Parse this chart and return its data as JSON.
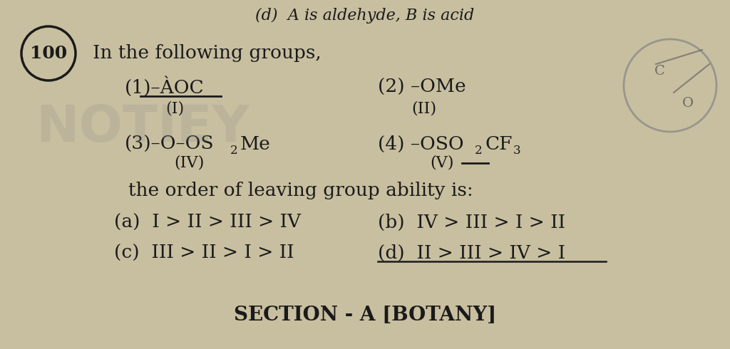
{
  "bg_color": "#c8bfa0",
  "font_color": "#1a1a1a",
  "title_line1": "(d)  A is aldehyde, B is acid",
  "q_num_text": "100",
  "q_text": "In the following groups,",
  "g1_text": "(1)–ÀOC",
  "g1_roman": "(I)",
  "g2_text": "(2) –OMe",
  "g2_roman": "(II)",
  "g3_pre": "(3)–O–OS",
  "g3_sub": "2",
  "g3_post": "Me",
  "g3_roman": "(IV)",
  "g4_pre": "(4) –OSO",
  "g4_sub": "2",
  "g4_mid": "CF",
  "g4_sub2": "3",
  "g4_roman": "(V)",
  "order_text": "the order of leaving group ability is:",
  "opt_a": "(a)  I > II > III > IV",
  "opt_b": "(b)  IV > III > I > II",
  "opt_c": "(c)  III > II > I > II",
  "opt_d": "(d)  II > III > IV > I",
  "section_text": "SECTION - A [BOTANY]",
  "fs_main": 19,
  "fs_roman": 16,
  "fs_sub": 12,
  "fs_title": 16,
  "fs_section": 20
}
